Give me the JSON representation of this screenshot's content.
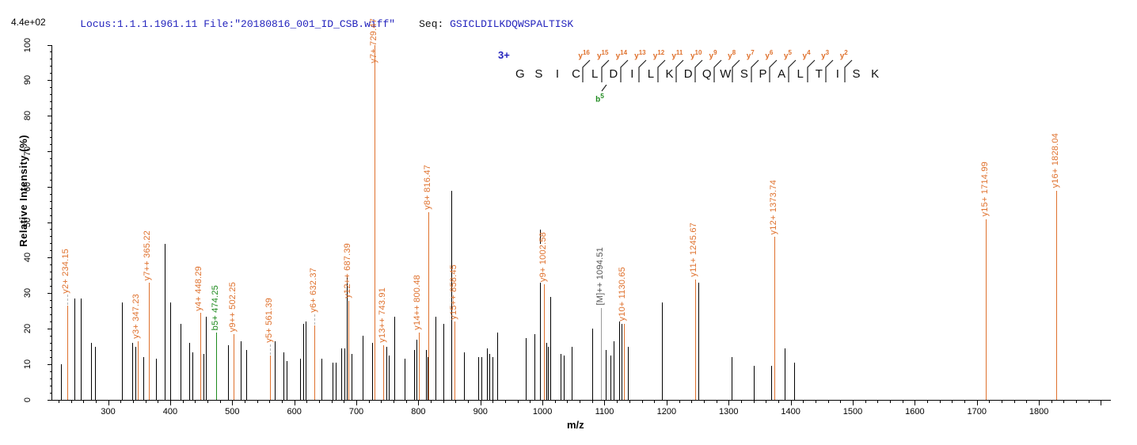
{
  "header": {
    "locus": "Locus:1.1.1.1961.11 File:\"20180816_001_ID_CSB.wiff\"",
    "seq_label": "Seq:",
    "sequence": "GSICLDILKDQWSPALTISK"
  },
  "y_axis": {
    "title": "Relative Intensity (%)",
    "top_label": "4.4e+02",
    "ticks": [
      0,
      10,
      20,
      30,
      40,
      50,
      60,
      70,
      80,
      90,
      100
    ],
    "minor_step": 2
  },
  "x_axis": {
    "title": "m/z",
    "ticks": [
      300,
      400,
      500,
      600,
      700,
      800,
      900,
      1000,
      1100,
      1200,
      1300,
      1400,
      1500,
      1600,
      1700,
      1800
    ],
    "minor_from": 220,
    "minor_to": 1900,
    "minor_step": 20
  },
  "sequence_panel": {
    "charge": "3+",
    "residues": [
      "G",
      "S",
      "I",
      "C",
      "L",
      "D",
      "I",
      "L",
      "K",
      "D",
      "Q",
      "W",
      "S",
      "P",
      "A",
      "L",
      "T",
      "I",
      "S",
      "K"
    ],
    "y_ion_prefix": "y",
    "b_ion_prefix": "b",
    "cuts": [
      {
        "before": 4,
        "num": 16
      },
      {
        "before": 5,
        "num": 15
      },
      {
        "before": 6,
        "num": 14
      },
      {
        "before": 7,
        "num": 13
      },
      {
        "before": 8,
        "num": 12
      },
      {
        "before": 9,
        "num": 11
      },
      {
        "before": 10,
        "num": 10
      },
      {
        "before": 11,
        "num": 9
      },
      {
        "before": 12,
        "num": 8
      },
      {
        "before": 13,
        "num": 7
      },
      {
        "before": 14,
        "num": 6
      },
      {
        "before": 15,
        "num": 5
      },
      {
        "before": 16,
        "num": 4
      },
      {
        "before": 17,
        "num": 3
      },
      {
        "before": 18,
        "num": 2
      }
    ],
    "b_cut": {
      "before": 5,
      "num": 5
    }
  },
  "colors": {
    "fragment_y": "#df712d",
    "fragment_b": "#1e8a1e",
    "precursor_line": "#9a9a9a",
    "precursor_label": "#555555",
    "header_blue": "#2323bd",
    "peak_black": "#000000"
  },
  "chart_data": {
    "type": "bar",
    "subtype": "ms2_centroid_mass_spectrum",
    "title": "",
    "xlabel": "m/z",
    "ylabel": "Relative Intensity (%)",
    "base_peak_absolute_intensity": "4.4e+02",
    "x_range": [
      210,
      1916
    ],
    "y_range": [
      0,
      100
    ],
    "grid": false,
    "labeled_peaks": [
      {
        "mz": 234.15,
        "intensity": 26.5,
        "label": "y2+ 234.15",
        "color": "#df712d",
        "leader": true
      },
      {
        "mz": 347.23,
        "intensity": 16.5,
        "label": "y3+ 347.23",
        "color": "#df712d"
      },
      {
        "mz": 365.22,
        "intensity": 33,
        "label": "y7++ 365.22",
        "color": "#df712d"
      },
      {
        "mz": 448.29,
        "intensity": 24.5,
        "label": "y4+ 448.29",
        "color": "#df712d"
      },
      {
        "mz": 474.25,
        "intensity": 19,
        "label": "b5+ 474.25",
        "color": "#1e8a1e"
      },
      {
        "mz": 502.25,
        "intensity": 18.5,
        "label": "y9++ 502.25",
        "color": "#df712d"
      },
      {
        "mz": 561.39,
        "intensity": 12.5,
        "label": "y5+ 561.39",
        "color": "#df712d",
        "leader": true
      },
      {
        "mz": 632.37,
        "intensity": 21,
        "label": "y6+ 632.37",
        "color": "#df712d",
        "leader": true
      },
      {
        "mz": 687.39,
        "intensity": 28,
        "label": "y12++ 687.39",
        "color": "#df712d"
      },
      {
        "mz": 729.47,
        "intensity": 100,
        "label": "y7+ 729.47",
        "color": "#df712d"
      },
      {
        "mz": 743.91,
        "intensity": 15.5,
        "label": "y13++ 743.91",
        "color": "#df712d"
      },
      {
        "mz": 800.48,
        "intensity": 19,
        "label": "y14++ 800.48",
        "color": "#df712d"
      },
      {
        "mz": 816.47,
        "intensity": 53,
        "label": "y8+ 816.47",
        "color": "#df712d"
      },
      {
        "mz": 858.45,
        "intensity": 22,
        "label": "y15++ 858.45",
        "color": "#df712d"
      },
      {
        "mz": 1002.58,
        "intensity": 32.5,
        "label": "y9+ 1002.58",
        "color": "#df712d"
      },
      {
        "mz": 1094.51,
        "intensity": 26,
        "label": "[M]++ 1094.51",
        "color": "#9a9a9a",
        "label_color": "#555555"
      },
      {
        "mz": 1130.65,
        "intensity": 21.5,
        "label": "y10+ 1130.65",
        "color": "#df712d"
      },
      {
        "mz": 1245.67,
        "intensity": 34,
        "label": "y11+ 1245.67",
        "color": "#df712d"
      },
      {
        "mz": 1373.74,
        "intensity": 46,
        "label": "y12+ 1373.74",
        "color": "#df712d"
      },
      {
        "mz": 1714.99,
        "intensity": 51,
        "label": "y15+ 1714.99",
        "color": "#df712d"
      },
      {
        "mz": 1828.04,
        "intensity": 59,
        "label": "y16+ 1828.04",
        "color": "#df712d"
      }
    ],
    "unlabeled_peaks": [
      [
        224,
        10
      ],
      [
        246,
        28.5
      ],
      [
        256,
        28.5
      ],
      [
        272,
        16
      ],
      [
        279,
        15
      ],
      [
        322,
        27.5
      ],
      [
        339,
        16
      ],
      [
        344,
        15
      ],
      [
        357,
        12
      ],
      [
        377,
        11.5
      ],
      [
        391,
        44
      ],
      [
        400,
        27.5
      ],
      [
        417,
        21.5
      ],
      [
        431,
        16
      ],
      [
        436,
        13.5
      ],
      [
        454,
        13
      ],
      [
        458,
        23.5
      ],
      [
        493,
        15.5
      ],
      [
        514,
        16.5
      ],
      [
        523,
        14
      ],
      [
        569,
        16.5
      ],
      [
        582,
        13.5
      ],
      [
        588,
        11
      ],
      [
        610,
        11.5
      ],
      [
        615,
        21.5
      ],
      [
        618,
        22
      ],
      [
        644,
        11.5
      ],
      [
        662,
        10.5
      ],
      [
        667,
        10.5
      ],
      [
        676,
        14.5
      ],
      [
        681,
        14.5
      ],
      [
        685,
        35
      ],
      [
        692,
        13
      ],
      [
        710,
        18
      ],
      [
        726,
        16
      ],
      [
        748,
        15
      ],
      [
        752,
        12.5
      ],
      [
        761,
        23.5
      ],
      [
        778,
        11.5
      ],
      [
        793,
        14
      ],
      [
        797,
        17
      ],
      [
        812,
        14
      ],
      [
        815,
        12
      ],
      [
        827,
        23.5
      ],
      [
        840,
        21.5
      ],
      [
        853,
        59
      ],
      [
        873,
        13.5
      ],
      [
        896,
        12
      ],
      [
        902,
        12
      ],
      [
        910,
        14.5
      ],
      [
        914,
        13
      ],
      [
        919,
        12
      ],
      [
        927,
        19
      ],
      [
        973,
        17.5
      ],
      [
        987,
        18.5
      ],
      [
        996,
        33
      ],
      [
        996,
        48,
        44
      ],
      [
        1006,
        16
      ],
      [
        1009,
        15
      ],
      [
        1013,
        29
      ],
      [
        1029,
        13
      ],
      [
        1034,
        12.5
      ],
      [
        1047,
        15
      ],
      [
        1080,
        20
      ],
      [
        1102,
        14
      ],
      [
        1109,
        12.5
      ],
      [
        1115,
        16.5
      ],
      [
        1124,
        22
      ],
      [
        1127,
        21.5
      ],
      [
        1138,
        15
      ],
      [
        1192,
        27.5
      ],
      [
        1251,
        33
      ],
      [
        1305,
        12
      ],
      [
        1340,
        9.5
      ],
      [
        1368,
        9.5
      ],
      [
        1390,
        14.5
      ],
      [
        1405,
        10.5
      ]
    ]
  }
}
